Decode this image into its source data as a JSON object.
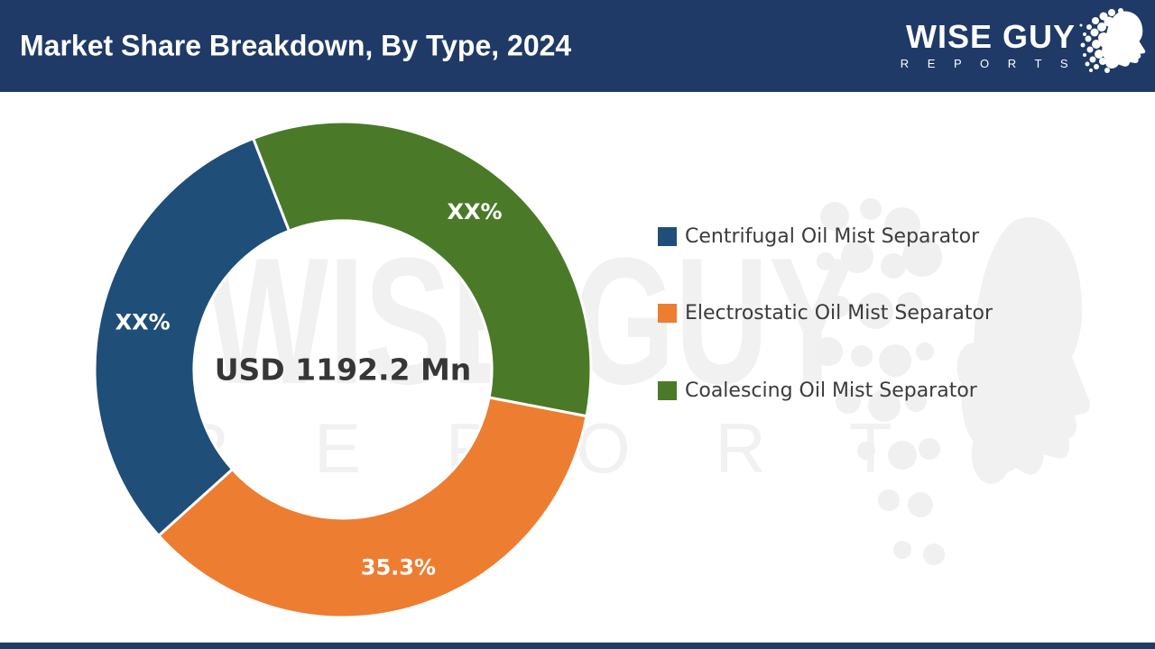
{
  "header": {
    "title": "Market Share Breakdown, By Type, 2024",
    "logo": {
      "primary": "WISE GUY",
      "secondary": "R E P O R T S"
    }
  },
  "watermark": {
    "line1": "WISE GUY",
    "line2": "R E P O R T S"
  },
  "colors": {
    "header_bg": "#1f3a66",
    "footer_bar": "#1f3a66",
    "title_text": "#ffffff",
    "center_text": "#363636",
    "legend_text": "#3b3b3b",
    "slice_label_text": "#ffffff",
    "watermark_gray": "#f1f1f1",
    "slice_blue": "#1f4e78",
    "slice_orange": "#ed7d31",
    "slice_green": "#4a7a28"
  },
  "chart_data": {
    "type": "pie",
    "donut": true,
    "title": "Market Share Breakdown, By Type, 2024",
    "center_label": "USD 1192.2 Mn",
    "legend_position": "right",
    "inner_radius_ratio": 0.6,
    "start_angle_deg": -21.2,
    "draw_order": [
      2,
      1,
      0
    ],
    "series": [
      {
        "name": "Centrifugal Oil Mist Separator",
        "label": "XX%",
        "value_pct": 30.8,
        "color": "#1f4e78"
      },
      {
        "name": "Electrostatic Oil Mist Separator",
        "label": "35.3%",
        "value_pct": 35.3,
        "color": "#ed7d31"
      },
      {
        "name": "Coalescing Oil Mist Separator",
        "label": "XX%",
        "value_pct": 33.9,
        "color": "#4a7a28"
      }
    ]
  }
}
